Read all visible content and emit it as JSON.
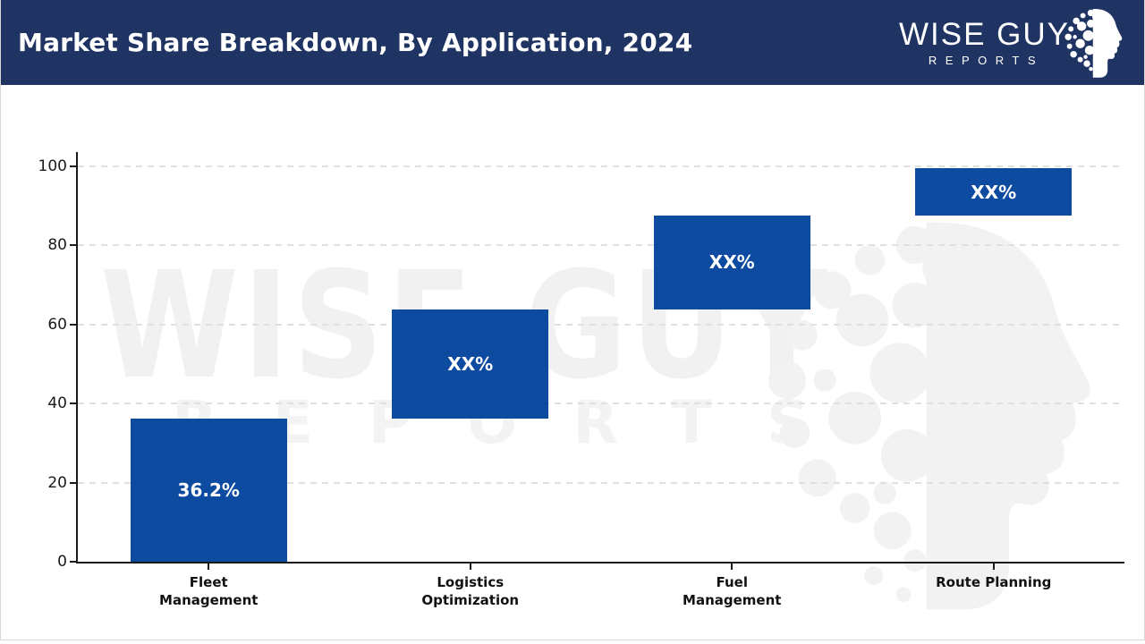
{
  "header": {
    "title": "Market Share Breakdown, By Application, 2024"
  },
  "logo": {
    "line1": "WISE GUY",
    "line2": "REPORTS"
  },
  "watermark": {
    "line1": "WISE GUY",
    "line2": "REPORTS"
  },
  "colors": {
    "header_bg": "#203464",
    "bar": "#0d4ba1",
    "bar_label": "#ffffff",
    "grid": "#e0e0e0",
    "axis": "#1a1a1a",
    "watermark": "#f1f1f1",
    "edge_line": "#d8d8d8"
  },
  "chart_data": {
    "type": "bar",
    "subtype": "waterfall",
    "title": "Market Share Breakdown, By Application, 2024",
    "categories": [
      "Fleet Management",
      "Logistics Optimization",
      "Fuel Management",
      "Route Planning"
    ],
    "bars": [
      {
        "category": "Fleet Management",
        "start": 0,
        "end": 36.2,
        "label": "36.2%"
      },
      {
        "category": "Logistics Optimization",
        "start": 36.2,
        "end": 63.9,
        "label": "XX%"
      },
      {
        "category": "Fuel Management",
        "start": 63.9,
        "end": 87.5,
        "label": "XX%"
      },
      {
        "category": "Route Planning",
        "start": 87.5,
        "end": 99.5,
        "label": "XX%"
      }
    ],
    "xlabel": "",
    "ylabel": "",
    "y_ticks": [
      0,
      20,
      40,
      60,
      80,
      100
    ],
    "ylim": [
      0,
      103.6
    ],
    "grid": "horizontal-dashed",
    "legend": "none",
    "bar_color": "#0d4ba1",
    "bar_label_color": "#ffffff"
  }
}
